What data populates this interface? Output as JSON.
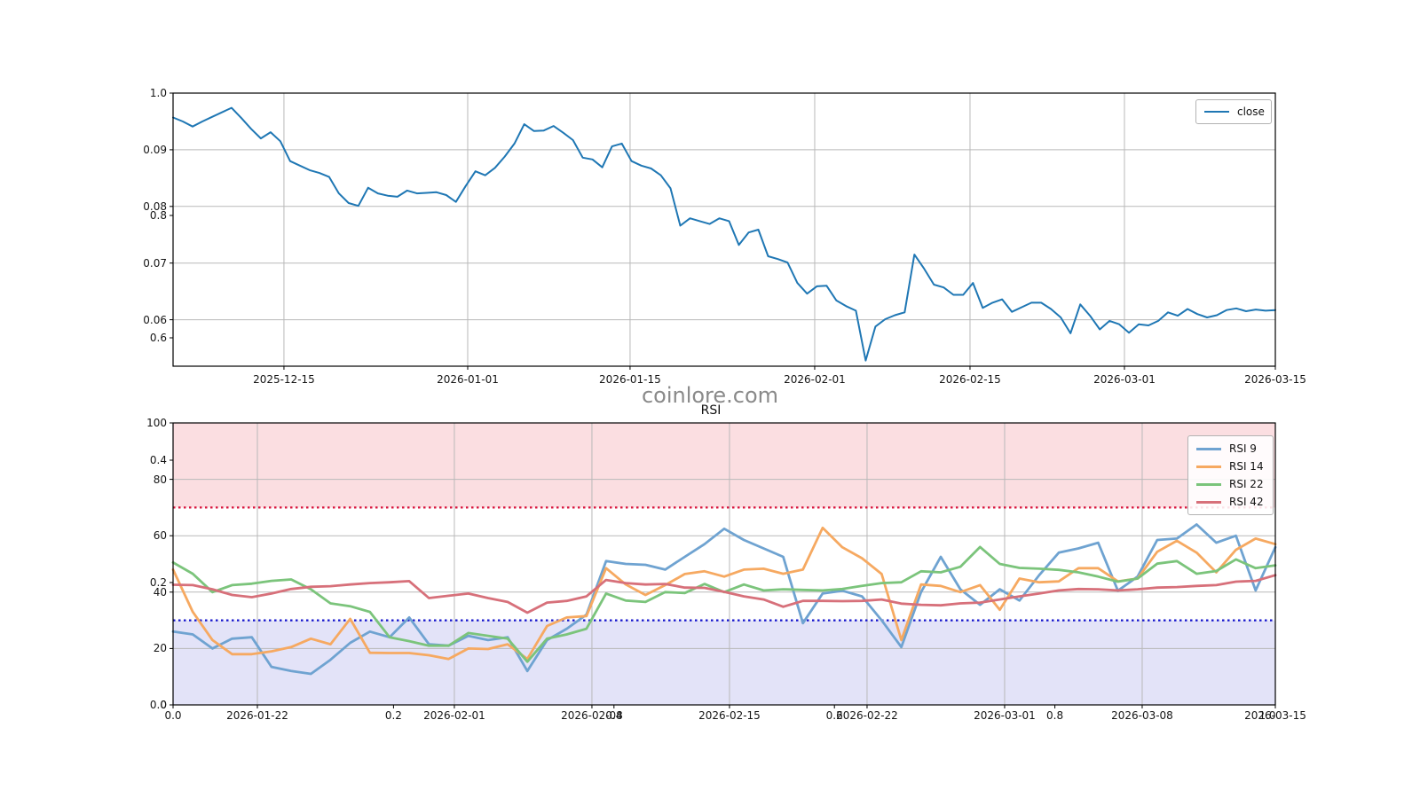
{
  "watermark": "coinlore.com",
  "chart_data": [
    {
      "type": "line",
      "title": "",
      "legend": [
        "close"
      ],
      "legend_position": "upper right",
      "grid": true,
      "x_tick_labels": [
        "2025-12-15",
        "2026-01-01",
        "2026-01-15",
        "2026-02-01",
        "2026-02-15",
        "2026-03-01",
        "2026-03-15"
      ],
      "y_tick_labels": [
        "0.09",
        "0.08",
        "0.07",
        "0.06"
      ],
      "y_tick_values": [
        0.09,
        0.08,
        0.07,
        0.06
      ],
      "figure_y_tick_labels": [
        "1.0",
        "0.8",
        "0.6"
      ],
      "ylim": [
        0.0518,
        0.1
      ],
      "series": [
        {
          "name": "close",
          "color": "#1f77b4",
          "width": 2,
          "values": [
            0.0957,
            0.095,
            0.0941,
            0.095,
            0.0958,
            0.0966,
            0.0974,
            0.0956,
            0.0937,
            0.092,
            0.0931,
            0.0915,
            0.088,
            0.0872,
            0.0864,
            0.0859,
            0.0852,
            0.0823,
            0.0806,
            0.0801,
            0.0833,
            0.0823,
            0.0819,
            0.0817,
            0.0828,
            0.0823,
            0.0824,
            0.0825,
            0.082,
            0.0808,
            0.0836,
            0.0862,
            0.0855,
            0.0868,
            0.0888,
            0.0911,
            0.0945,
            0.0933,
            0.0934,
            0.0942,
            0.093,
            0.0917,
            0.0886,
            0.0883,
            0.0869,
            0.0906,
            0.0911,
            0.088,
            0.0872,
            0.0867,
            0.0855,
            0.0832,
            0.0766,
            0.0779,
            0.0774,
            0.0769,
            0.0779,
            0.0774,
            0.0732,
            0.0754,
            0.0759,
            0.0712,
            0.0707,
            0.0701,
            0.0665,
            0.0646,
            0.0659,
            0.066,
            0.0634,
            0.0624,
            0.0616,
            0.0528,
            0.0588,
            0.0601,
            0.0608,
            0.0613,
            0.0715,
            0.069,
            0.0662,
            0.0657,
            0.0644,
            0.0644,
            0.0665,
            0.0621,
            0.063,
            0.0636,
            0.0614,
            0.0622,
            0.063,
            0.063,
            0.0619,
            0.0604,
            0.0576,
            0.0627,
            0.0607,
            0.0583,
            0.0598,
            0.0592,
            0.0577,
            0.0592,
            0.059,
            0.0598,
            0.0613,
            0.0607,
            0.0619,
            0.061,
            0.0604,
            0.0608,
            0.0617,
            0.062,
            0.0615,
            0.0618,
            0.0616,
            0.0617
          ]
        }
      ]
    },
    {
      "type": "line",
      "title": "RSI",
      "legend": [
        "RSI 9",
        "RSI 14",
        "RSI 22",
        "RSI 42"
      ],
      "legend_position": "upper right",
      "grid": true,
      "x_tick_labels": [
        "2026-01-22",
        "2026-02-01",
        "2026-02-08",
        "2026-02-15",
        "2026-02-22",
        "2026-03-01",
        "2026-03-08",
        "2026-03-15"
      ],
      "figure_x_tick_labels": [
        "0.0",
        "0.2",
        "0.4",
        "0.6",
        "0.8",
        "1.0"
      ],
      "y_tick_labels": [
        "100",
        "80",
        "60",
        "40",
        "20",
        "0"
      ],
      "y_tick_values": [
        100,
        80,
        60,
        40,
        20,
        0
      ],
      "figure_y_tick_labels": [
        "0.4",
        "0.2",
        "0.0"
      ],
      "ylim": [
        0,
        100
      ],
      "overbought": {
        "level": 70,
        "line_color": "#d8143c",
        "band_color": "#fbdee1"
      },
      "oversold": {
        "level": 30,
        "line_color": "#1414cc",
        "band_color": "#e3e3f8"
      },
      "series": [
        {
          "name": "RSI 9",
          "color": "#6fa3d1",
          "width": 2.8,
          "values": [
            26,
            25,
            20,
            23.5,
            24,
            13.5,
            12,
            11,
            16,
            22,
            26,
            24,
            31,
            21.5,
            21,
            24.5,
            23,
            24,
            12,
            23,
            27,
            32,
            51,
            50,
            49.7,
            48,
            52.5,
            57,
            62.5,
            58.5,
            55.5,
            52.5,
            29,
            39.5,
            40.5,
            38.5,
            30,
            20.5,
            40,
            52.5,
            41,
            35.5,
            41,
            37,
            46,
            54,
            55.5,
            57.5,
            40.5,
            45.5,
            58.5,
            59,
            64,
            57.5,
            60,
            40.6,
            55.9
          ]
        },
        {
          "name": "RSI 14",
          "color": "#f6a961",
          "width": 2.8,
          "values": [
            48,
            33,
            23,
            18,
            18,
            19,
            20.5,
            23.5,
            21.5,
            30.5,
            18.5,
            18.4,
            18.4,
            17.6,
            16.3,
            20,
            19.8,
            21.5,
            16.3,
            28,
            31,
            31.5,
            48.5,
            42.7,
            39,
            42.5,
            46.4,
            47.4,
            45.5,
            48,
            48.3,
            46.5,
            48,
            62.8,
            55.9,
            52,
            46.4,
            23,
            42.7,
            42.2,
            40,
            42.5,
            33.7,
            44.8,
            43.5,
            43.8,
            48.5,
            48.5,
            43.8,
            44.8,
            54.3,
            58.2,
            54,
            47,
            55,
            59,
            57
          ]
        },
        {
          "name": "RSI 22",
          "color": "#7bc47b",
          "width": 2.8,
          "values": [
            50.5,
            46.5,
            40,
            42.5,
            43,
            44,
            44.5,
            41,
            36,
            35,
            33,
            24,
            22.6,
            21,
            21,
            25.5,
            24.5,
            23.5,
            15.3,
            23.5,
            25,
            27,
            39.5,
            37,
            36.5,
            40,
            39.7,
            42.9,
            40,
            42.7,
            40.6,
            41,
            40.8,
            40.6,
            41.1,
            42.2,
            43.2,
            43.5,
            47.4,
            47,
            49,
            56,
            50,
            48.6,
            48.3,
            47.9,
            47,
            45.5,
            43.7,
            44.8,
            50.1,
            51,
            46.5,
            47.5,
            51.6,
            48.5,
            49.5
          ]
        },
        {
          "name": "RSI 42",
          "color": "#d7707a",
          "width": 2.8,
          "values": [
            42.6,
            42.5,
            41,
            39,
            38.2,
            39.5,
            41.1,
            41.9,
            42.1,
            42.7,
            43.2,
            43.5,
            43.9,
            37.9,
            38.7,
            39.5,
            37.9,
            36.5,
            32.7,
            36.3,
            36.9,
            38.5,
            44.3,
            43.2,
            42.7,
            42.9,
            41.6,
            41.5,
            40.1,
            38.5,
            37.4,
            34.8,
            36.9,
            36.9,
            36.8,
            36.9,
            37.4,
            35.9,
            35.5,
            35.3,
            36,
            36.3,
            37.4,
            38.5,
            39.5,
            40.6,
            41.1,
            41,
            40.6,
            41,
            41.6,
            41.8,
            42.2,
            42.5,
            43.7,
            44,
            46
          ]
        }
      ]
    }
  ],
  "style": {
    "grid_color": "#b9b9b9",
    "spine_color": "#000000",
    "background": "#ffffff"
  }
}
